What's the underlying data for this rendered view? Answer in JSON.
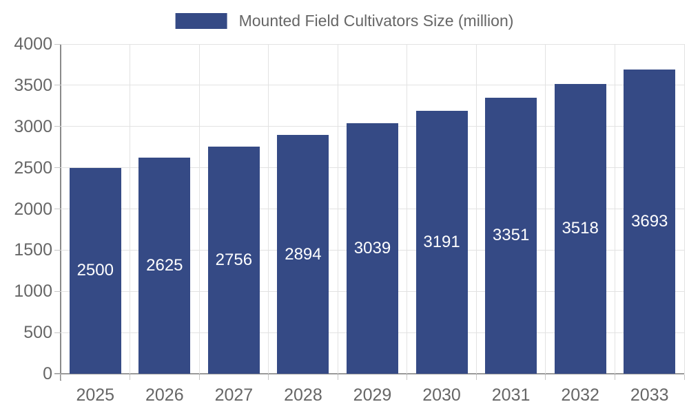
{
  "legend": {
    "label": "Mounted Field Cultivators Size (million)"
  },
  "chart_data": {
    "type": "bar",
    "title": "Mounted Field Cultivators Size (million)",
    "series_name": "Mounted Field Cultivators Size (million)",
    "categories": [
      "2025",
      "2026",
      "2027",
      "2028",
      "2029",
      "2030",
      "2031",
      "2032",
      "2033"
    ],
    "values": [
      2500,
      2625,
      2756,
      2894,
      3039,
      3191,
      3351,
      3518,
      3693
    ],
    "xlabel": "",
    "ylabel": "",
    "ylim": [
      0,
      4000
    ],
    "yticks": [
      0,
      500,
      1000,
      1500,
      2000,
      2500,
      3000,
      3500,
      4000
    ],
    "grid": true,
    "legend_position": "top-center",
    "bar_label_position": "inside-center",
    "colors": {
      "bar": "#354a85",
      "bar_label": "#ffffff",
      "axis_text": "#666666",
      "grid_line": "#e2e2e2",
      "tick_line": "#c6c6c6",
      "axis_line": "#8a8a8a",
      "background": "#ffffff"
    }
  }
}
